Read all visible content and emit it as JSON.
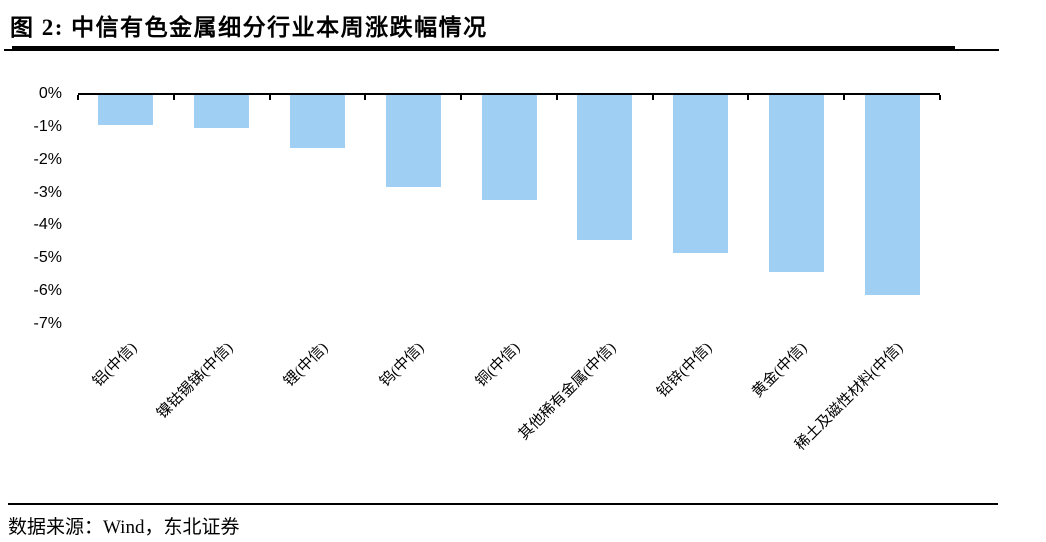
{
  "figure": {
    "title": "图 2: 中信有色金属细分行业本周涨跌幅情况",
    "source_note": "数据来源：Wind，东北证券"
  },
  "chart_data": {
    "type": "bar",
    "title": "图 2: 中信有色金属细分行业本周涨跌幅情况",
    "categories": [
      "铝(中信)",
      "镍钴锡锑(中信)",
      "锂(中信)",
      "钨(中信)",
      "铜(中信)",
      "其他稀有金属(中信)",
      "铅锌(中信)",
      "黄金(中信)",
      "稀土及磁性材料(中信)"
    ],
    "values": [
      -0.9,
      -1.0,
      -1.6,
      -2.8,
      -3.2,
      -4.4,
      -4.8,
      -5.4,
      -6.1
    ],
    "unit": "%",
    "xlabel": "",
    "ylabel": "",
    "ylim": [
      -7,
      0
    ],
    "ytick_labels": [
      "0%",
      "-1%",
      "-2%",
      "-3%",
      "-4%",
      "-5%",
      "-6%",
      "-7%"
    ],
    "bar_color": "#9FCFF2",
    "axis_color": "#000000",
    "gridlines": false,
    "legend": false,
    "x_label_rotation_deg": 45
  }
}
